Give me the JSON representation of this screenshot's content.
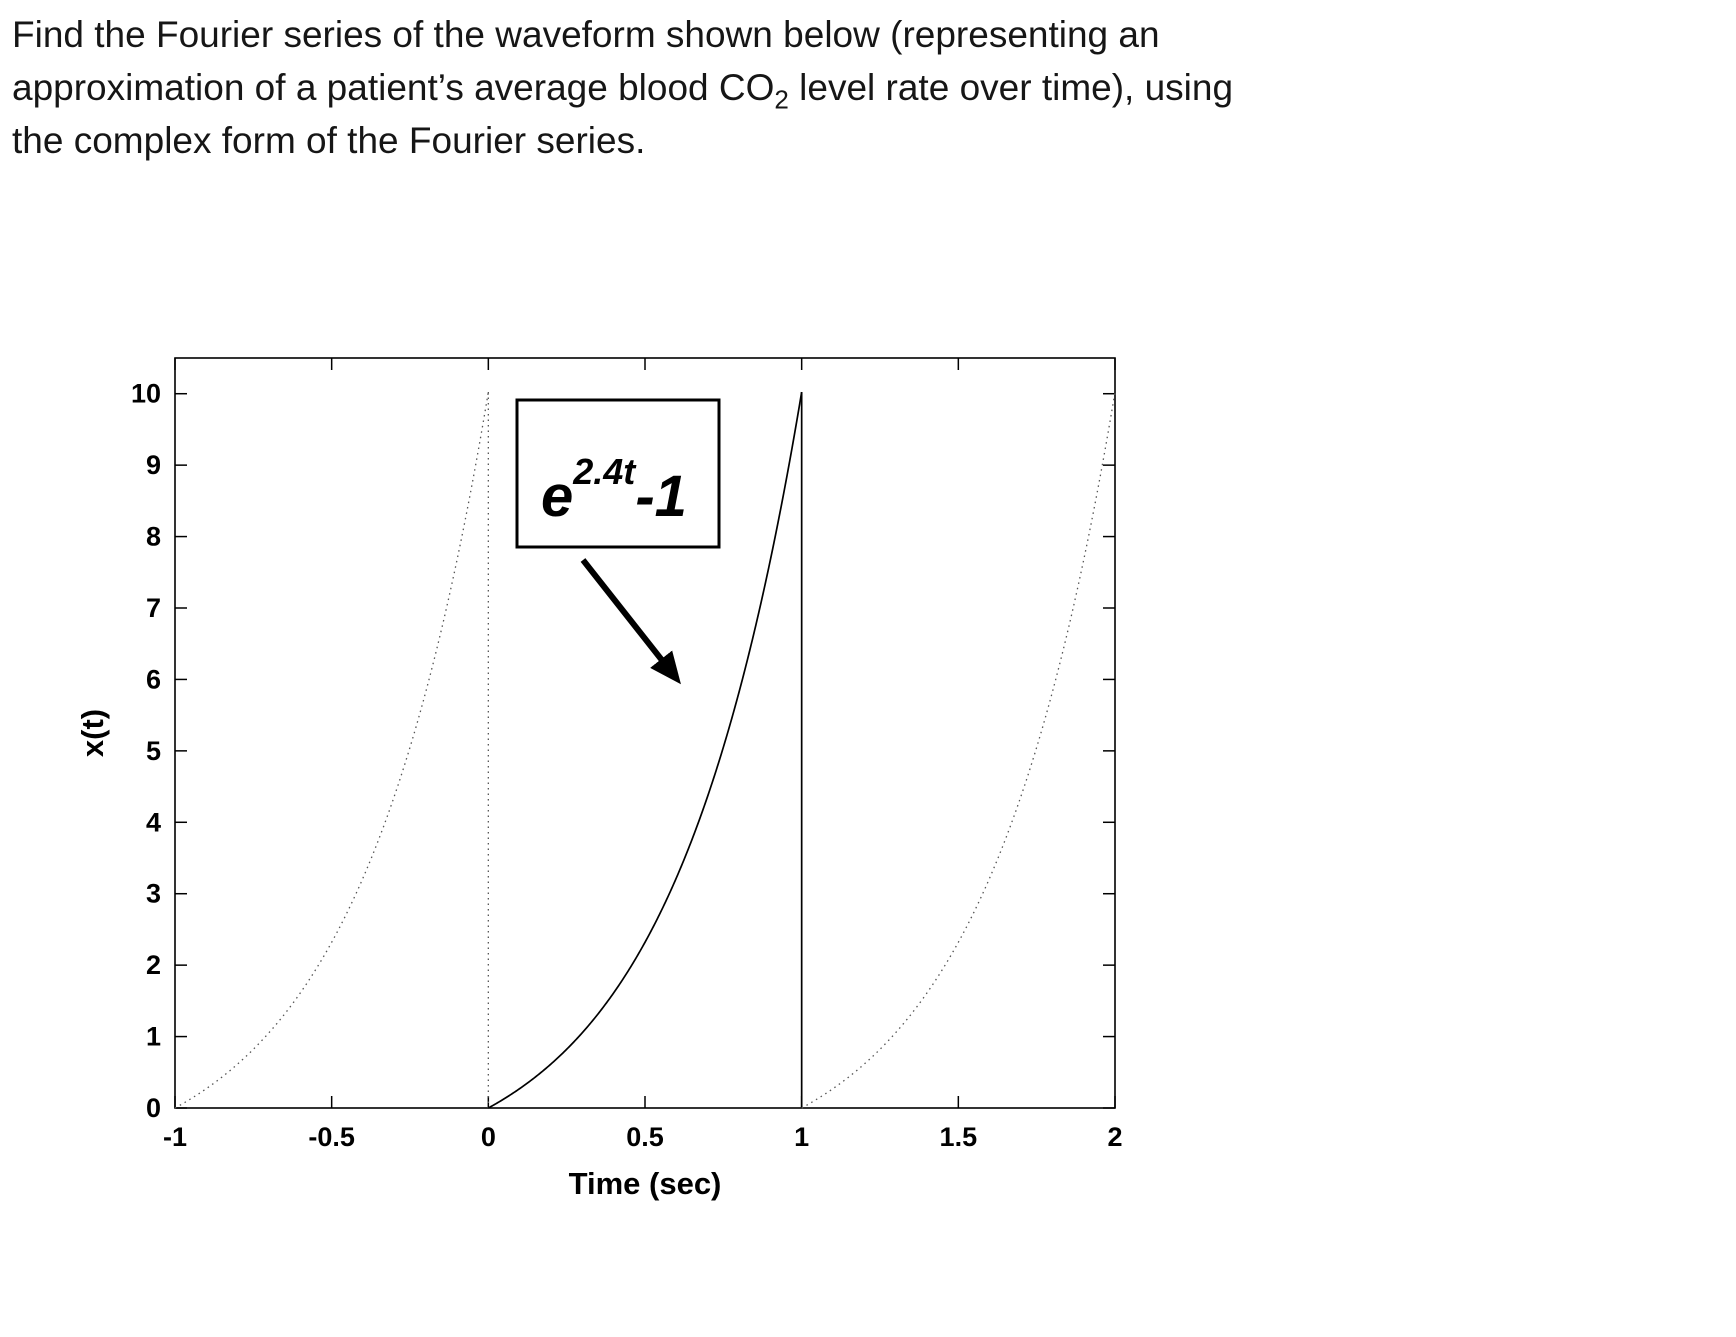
{
  "question": {
    "line1": "Find the Fourier series of the waveform shown below (representing an",
    "line2_before_sub": "approximation of a patient’s average blood CO",
    "line2_sub": "2",
    "line2_after_sub": " level rate over time), using",
    "line3": "the complex form of the Fourier series."
  },
  "chart_data": {
    "type": "line",
    "title": "",
    "xlabel": "Time (sec)",
    "ylabel": "x(t)",
    "xlim": [
      -1,
      2
    ],
    "ylim": [
      0,
      10.5
    ],
    "xticks": [
      -1,
      -0.5,
      0,
      0.5,
      1,
      1.5,
      2
    ],
    "xtick_labels": [
      "-1",
      "-0.5",
      "0",
      "0.5",
      "1",
      "1.5",
      "2"
    ],
    "yticks": [
      0,
      1,
      2,
      3,
      4,
      5,
      6,
      7,
      8,
      9,
      10
    ],
    "ytick_labels": [
      "0",
      "1",
      "2",
      "3",
      "4",
      "5",
      "6",
      "7",
      "8",
      "9",
      "10"
    ],
    "grid": false,
    "legend": "none",
    "curve": {
      "expression": "e^{2.4t} - 1",
      "rate": 2.4,
      "offset": -1,
      "period_sec": 1,
      "value_at_period_start": 0,
      "peak_value": 10.02
    },
    "segments": [
      {
        "t_start": -1,
        "t_end": 0,
        "style": "dotted",
        "drop_line": true
      },
      {
        "t_start": 0,
        "t_end": 1,
        "style": "solid",
        "drop_line": true
      },
      {
        "t_start": 1,
        "t_end": 2,
        "style": "dotted",
        "drop_line": false
      }
    ],
    "annotation": {
      "base": "e",
      "sup": "2.4t",
      "suffix": "-1"
    }
  }
}
